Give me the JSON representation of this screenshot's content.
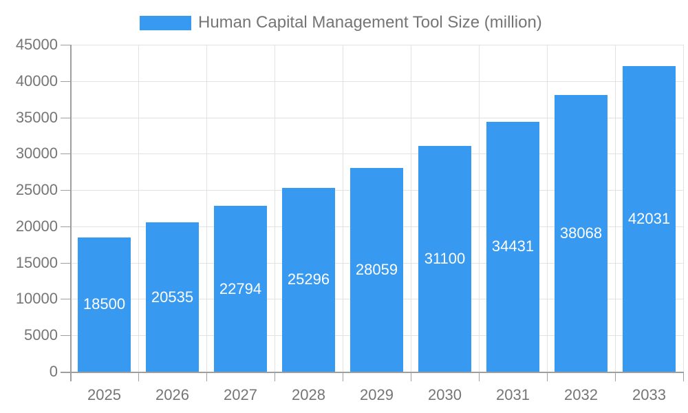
{
  "legend": {
    "label": "Human Capital Management Tool Size (million)"
  },
  "chart_data": {
    "type": "bar",
    "title": "Human Capital Management Tool Size (million)",
    "categories": [
      "2025",
      "2026",
      "2027",
      "2028",
      "2029",
      "2030",
      "2031",
      "2032",
      "2033"
    ],
    "values": [
      18500,
      20535,
      22794,
      25296,
      28059,
      31100,
      34431,
      38068,
      42031
    ],
    "xlabel": "",
    "ylabel": "",
    "ylim": [
      0,
      45000
    ],
    "ytick_step": 5000,
    "yticks": [
      0,
      5000,
      10000,
      15000,
      20000,
      25000,
      30000,
      35000,
      40000,
      45000
    ],
    "grid": true,
    "legend_position": "top-center",
    "bar_label_position": "inside-center",
    "colors": {
      "bar": "#3899F0",
      "bar_label": "#FFFFFF",
      "axis": "#9E9E9E",
      "grid": "#E2E2E2",
      "text": "#757575"
    }
  }
}
